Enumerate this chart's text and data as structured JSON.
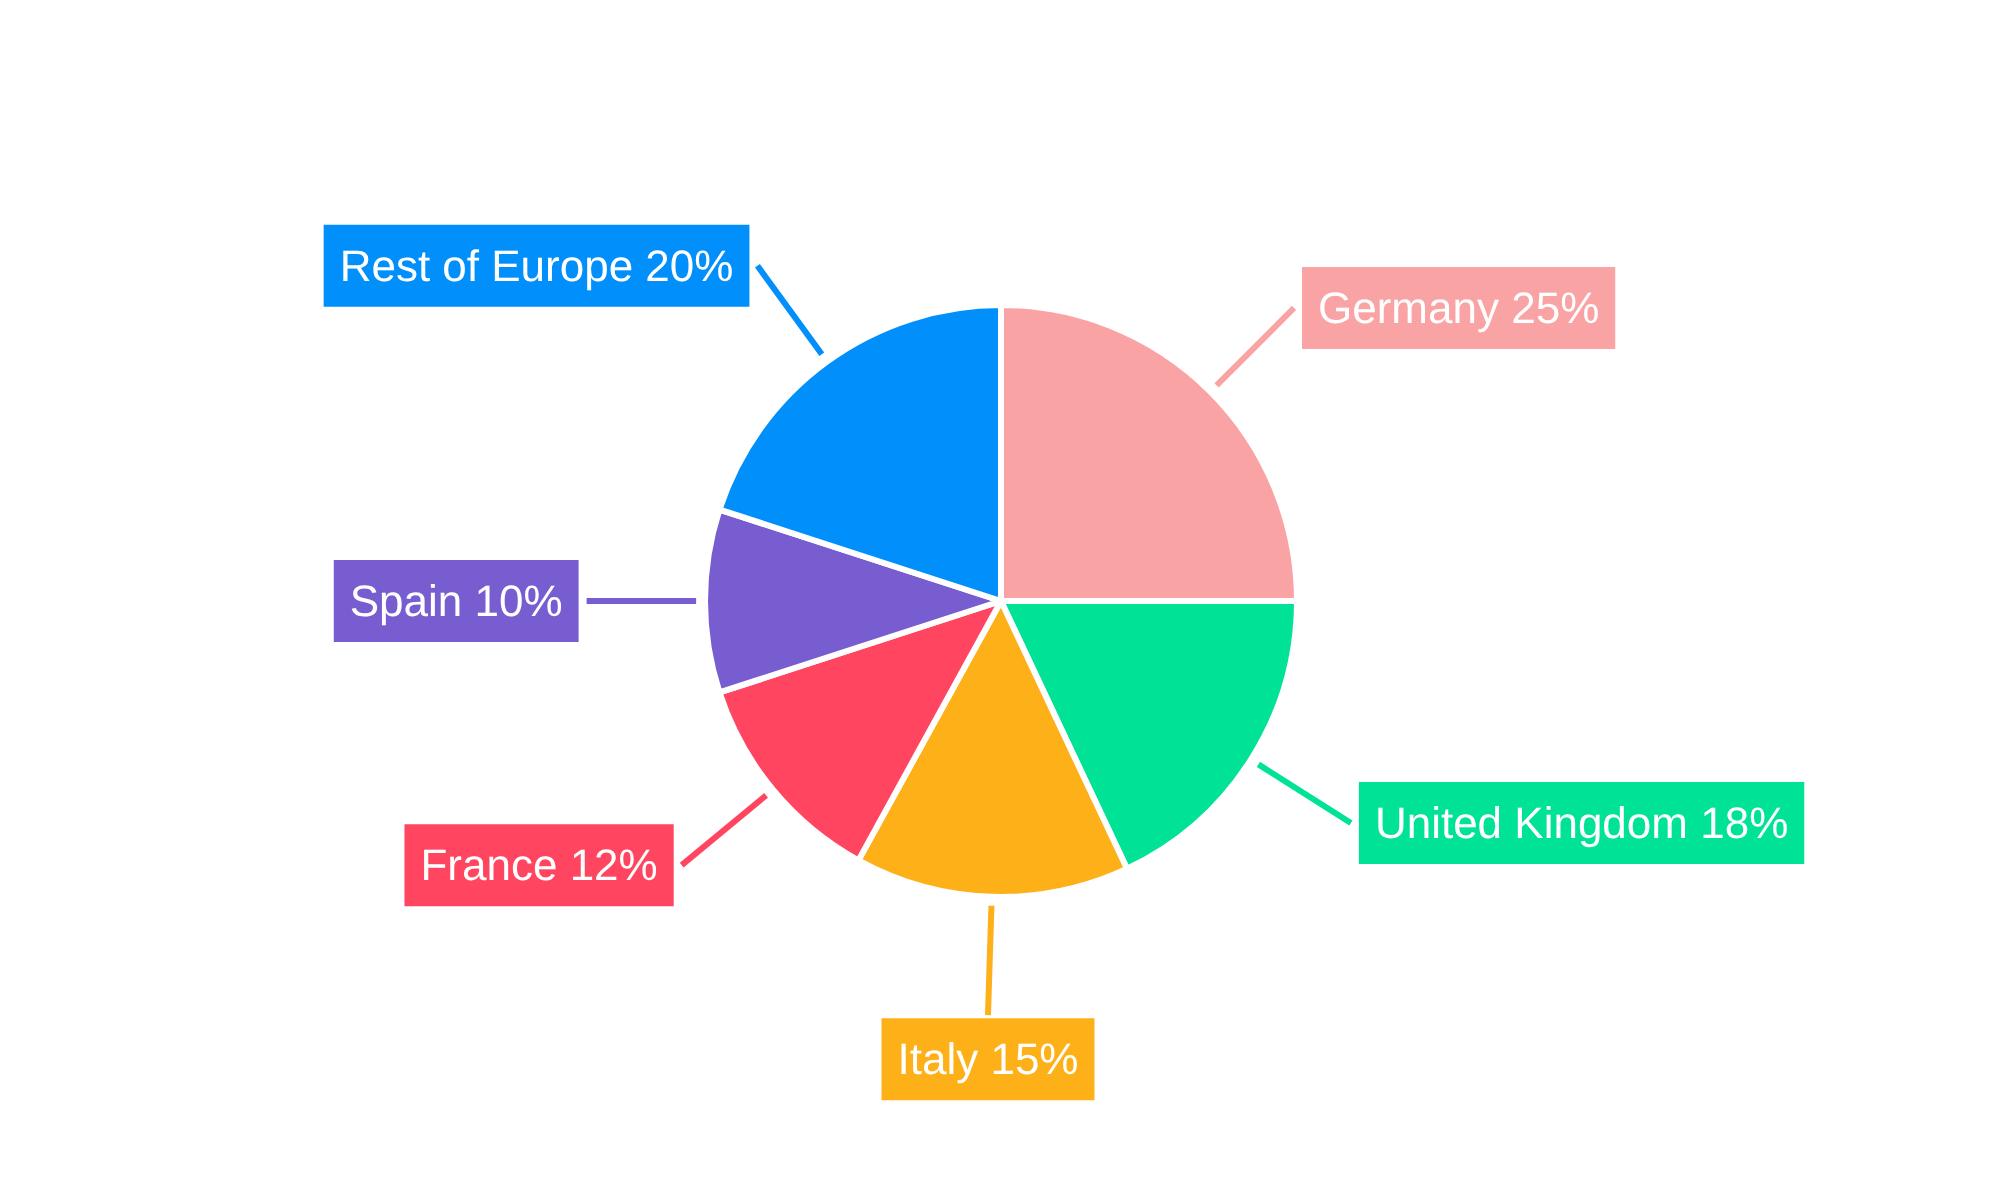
{
  "chart_data": {
    "type": "pie",
    "categories": [
      "Germany",
      "United Kingdom",
      "Italy",
      "France",
      "Spain",
      "Rest of Europe"
    ],
    "values": [
      25,
      18,
      15,
      12,
      10,
      20
    ],
    "value_labels": [
      "25%",
      "18%",
      "15%",
      "12%",
      "10%",
      "20%"
    ],
    "colors": [
      "#f9a3a4",
      "#00e396",
      "#feb019",
      "#ff4560",
      "#775dd0",
      "#008ffb"
    ]
  }
}
